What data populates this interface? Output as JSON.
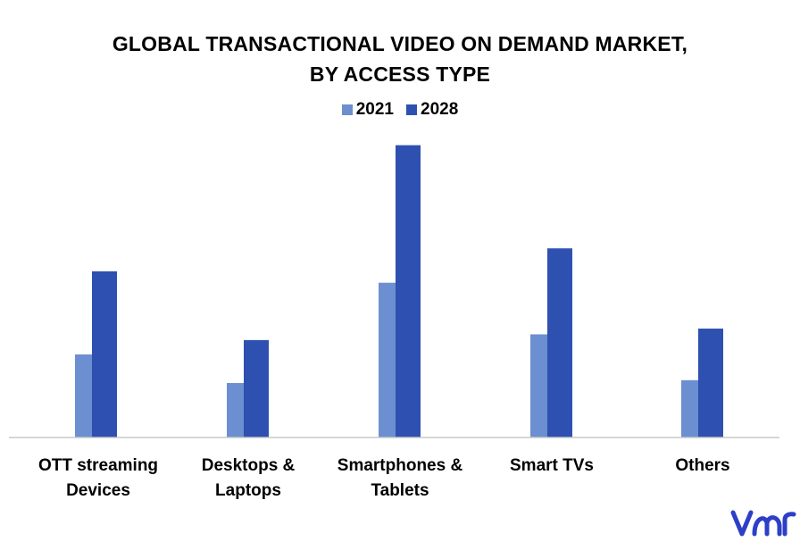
{
  "chart_data": {
    "type": "bar",
    "title": [
      "GLOBAL TRANSACTIONAL VIDEO ON DEMAND MARKET,",
      "BY ACCESS TYPE"
    ],
    "categories": [
      [
        "OTT streaming",
        "Devices"
      ],
      [
        "Desktops &",
        "Laptops"
      ],
      [
        "Smartphones &",
        "Tablets"
      ],
      [
        "Smart TVs"
      ],
      [
        "Others"
      ]
    ],
    "series": [
      {
        "name": "2021",
        "color": "#6b8fd0",
        "values": [
          2.9,
          1.9,
          5.4,
          3.6,
          2.0
        ]
      },
      {
        "name": "2028",
        "color": "#2e50b0",
        "values": [
          5.8,
          3.4,
          10.2,
          6.6,
          3.8
        ]
      }
    ],
    "ylim": [
      0,
      10.5
    ],
    "grid": false,
    "legend": "top-center",
    "xlabel": "",
    "ylabel": ""
  },
  "logo": {
    "name": "vmr-logo",
    "color": "#2d3fc7"
  }
}
